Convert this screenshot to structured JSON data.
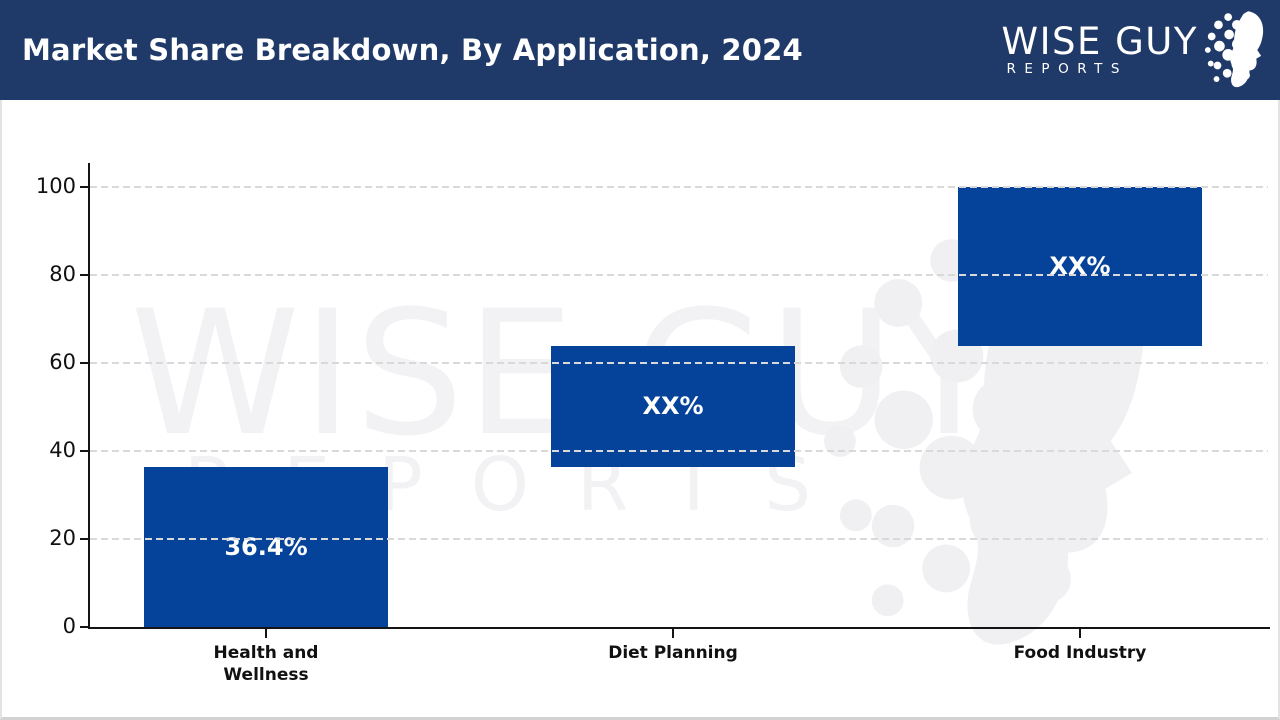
{
  "header": {
    "title": "Market Share Breakdown, By Application, 2024",
    "logo_line1": "WISE GUY",
    "logo_line2": "REPORTS"
  },
  "watermark": {
    "line1": "WISE GUY",
    "line2": "REPORTS"
  },
  "chart_data": {
    "type": "bar",
    "subtype": "floating-waterfall-segments",
    "title": "Market Share Breakdown, By Application, 2024",
    "categories": [
      "Health and Wellness",
      "Diet Planning",
      "Food Industry"
    ],
    "segments": [
      {
        "category": "Health and Wellness",
        "start": 0,
        "end": 36.4,
        "label": "36.4%"
      },
      {
        "category": "Diet Planning",
        "start": 36.4,
        "end": 63.9,
        "label": "XX%"
      },
      {
        "category": "Food Industry",
        "start": 63.9,
        "end": 100,
        "label": "XX%"
      }
    ],
    "yticks": [
      0,
      20,
      40,
      60,
      80,
      100
    ],
    "ylim": [
      0,
      105
    ],
    "xlabel": "",
    "ylabel": "",
    "grid": "horizontal-dashed",
    "legend": "none",
    "bar_color": "#05439a",
    "value_label_color": "#ffffff"
  },
  "colors": {
    "header_bg": "#1f3a68",
    "bar": "#05439a",
    "watermark": "#f2f2f4",
    "grid": "#d9d9d9",
    "axis": "#141414"
  }
}
